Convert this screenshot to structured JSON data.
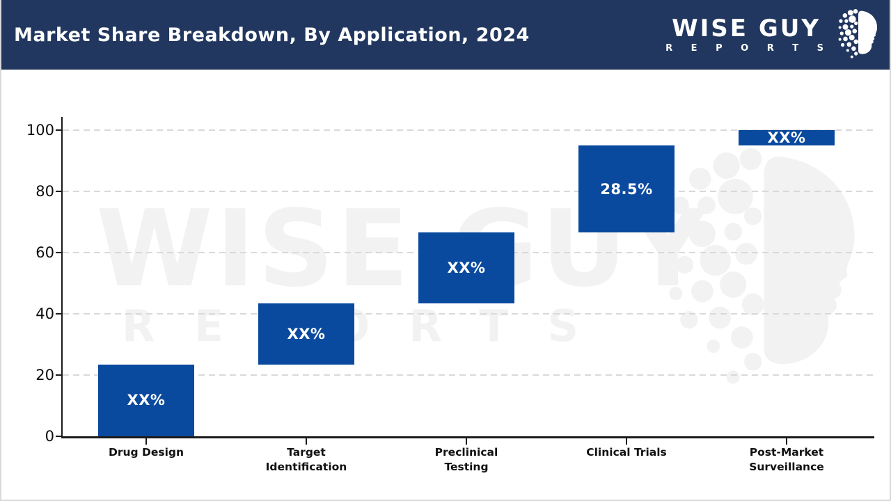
{
  "header": {
    "title": "Market Share Breakdown, By Application, 2024",
    "logo": {
      "primary": "WISE GUY",
      "secondary": "REPORTS"
    }
  },
  "watermark": {
    "primary": "WISE GUY",
    "secondary": "REPORTS"
  },
  "colors": {
    "header_bg": "#21375f",
    "bar": "#0a4a9e",
    "bar_label": "#ffffff",
    "grid": "#d9d9d9",
    "axis": "#1a1a1a",
    "watermark": "#f2f2f2",
    "page_border": "#d9d9d9"
  },
  "chart_data": {
    "type": "bar",
    "subtype": "waterfall",
    "title": "Market Share Breakdown, By Application, 2024",
    "categories": [
      "Drug Design",
      "Target\nIdentification",
      "Preclinical\nTesting",
      "Clinical Trials",
      "Post-Market\nSurveillance"
    ],
    "segments": [
      {
        "category": "Drug Design",
        "start": 0,
        "end": 23.5,
        "label": "XX%"
      },
      {
        "category": "Target Identification",
        "start": 23.5,
        "end": 43.5,
        "label": "XX%"
      },
      {
        "category": "Preclinical Testing",
        "start": 43.5,
        "end": 66.5,
        "label": "XX%"
      },
      {
        "category": "Clinical Trials",
        "start": 66.5,
        "end": 95,
        "label": "28.5%"
      },
      {
        "category": "Post-Market Surveillance",
        "start": 95,
        "end": 100,
        "label": "XX%"
      }
    ],
    "yticks": [
      0,
      20,
      40,
      60,
      80,
      100
    ],
    "ylim": [
      0,
      105
    ],
    "xlabel": "",
    "ylabel": "",
    "grid": "horizontal-dashed",
    "legend": null
  }
}
